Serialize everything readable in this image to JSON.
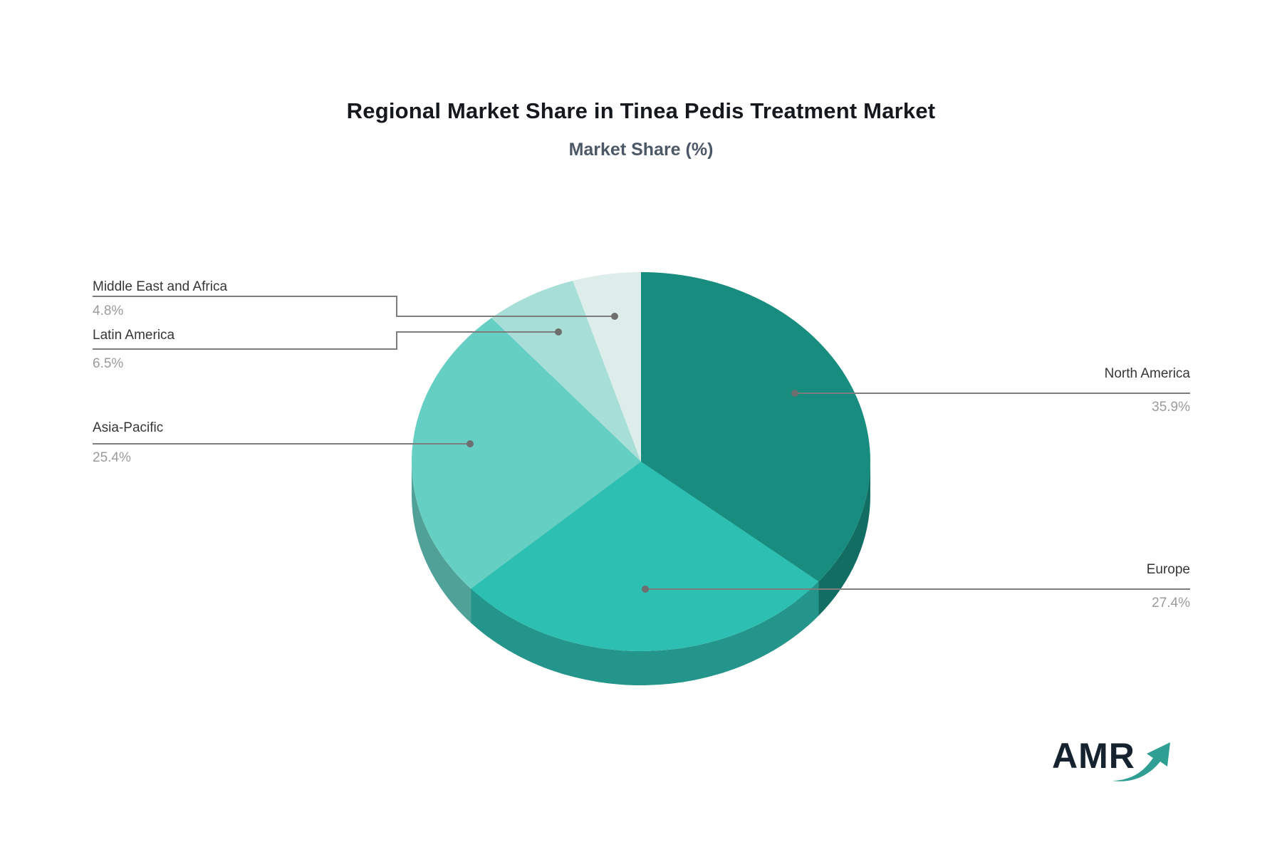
{
  "title": "Regional Market Share in Tinea Pedis Treatment Market",
  "subtitle": "Market Share (%)",
  "logo": {
    "text": "AMR"
  },
  "chart_data": {
    "type": "pie",
    "style": "3d-pie",
    "title": "Regional Market Share in Tinea Pedis Treatment Market",
    "subtitle": "Market Share (%)",
    "unit": "%",
    "start_angle": "12 o'clock",
    "direction": "clockwise",
    "slices": [
      {
        "label": "North America",
        "value": 35.9,
        "display": "35.9%",
        "color": "#178c7f"
      },
      {
        "label": "Europe",
        "value": 27.4,
        "display": "27.4%",
        "color": "#2dbfb2"
      },
      {
        "label": "Asia-Pacific",
        "value": 25.4,
        "display": "25.4%",
        "color": "#66cfc3"
      },
      {
        "label": "Latin America",
        "value": 6.5,
        "display": "6.5%",
        "color": "#a7ded8"
      },
      {
        "label": "Middle East and Africa",
        "value": 4.8,
        "display": "4.8%",
        "color": "#ddeeea"
      }
    ],
    "colors": {
      "leader_line": "#7d7d7d",
      "leader_dot": "#6e6e6e",
      "label_text": "#363636",
      "value_text": "#9b9b9b",
      "title_text": "#15181c",
      "subtitle_text": "#4d5866",
      "logo_text": "#16232e",
      "logo_arrow": "#2f9e93"
    },
    "legend": "none",
    "grid": "off"
  }
}
